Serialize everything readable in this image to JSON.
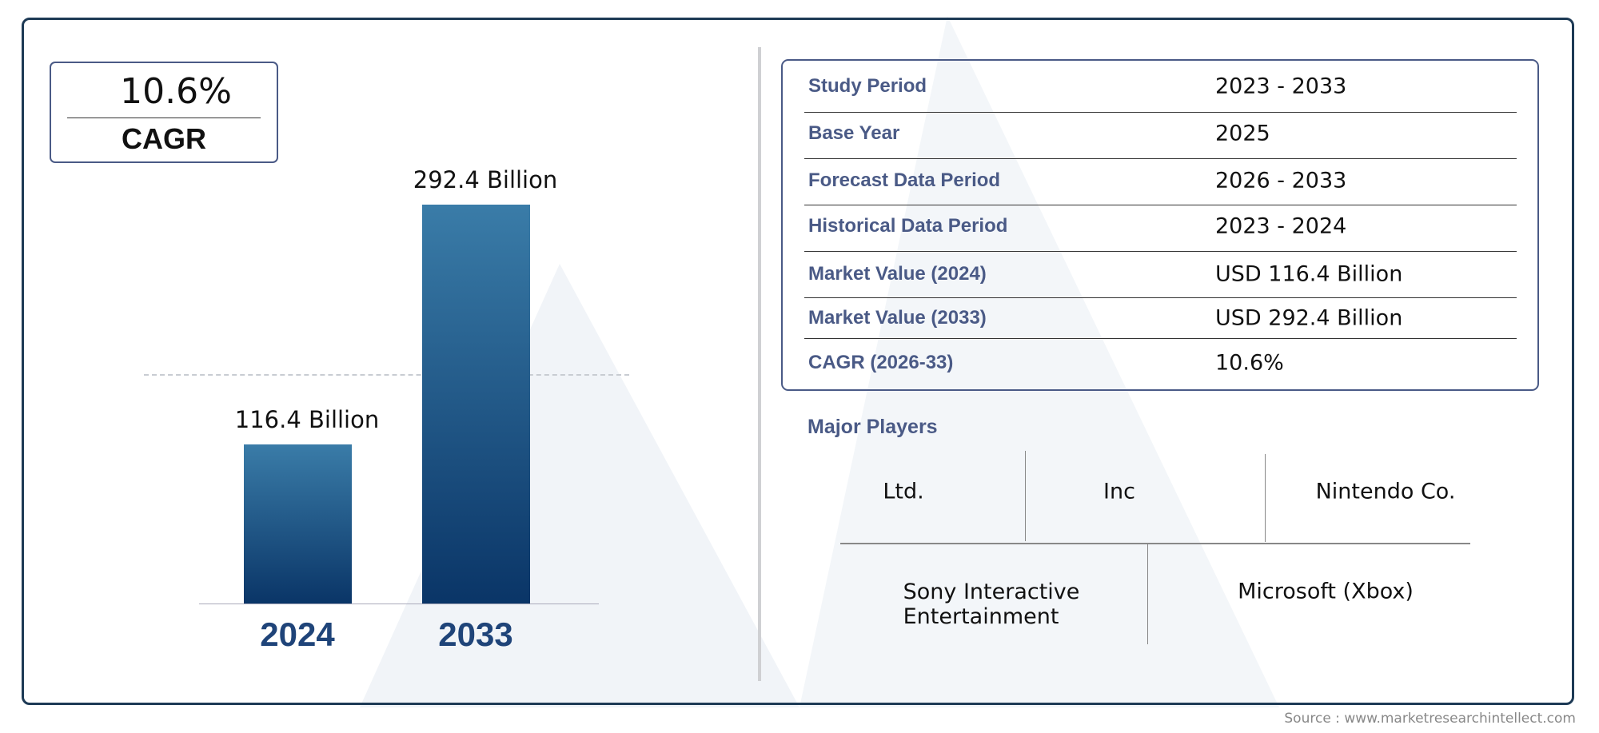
{
  "cagr_badge": {
    "value": "10.6%",
    "label": "CAGR"
  },
  "chart_data": {
    "type": "bar",
    "categories": [
      "2024",
      "2033"
    ],
    "values": [
      116.4,
      292.4
    ],
    "data_labels": [
      "116.4 Billion",
      "292.4 Billion"
    ],
    "unit": "Billion",
    "colors": {
      "bar_top": "#3a7ca8",
      "bar_bottom": "#0a3567",
      "year_label": "#1f4479"
    },
    "reference_line": "dashed at 2024 value"
  },
  "summary_table": [
    {
      "label": "Study Period",
      "value": "2023 - 2033"
    },
    {
      "label": "Base Year",
      "value": "2025"
    },
    {
      "label": "Forecast Data Period",
      "value": "2026 - 2033"
    },
    {
      "label": "Historical Data Period",
      "value": "2023 - 2024"
    },
    {
      "label": "Market Value (2024)",
      "value": "USD 116.4 Billion"
    },
    {
      "label": "Market Value (2033)",
      "value": "USD 292.4 Billion"
    },
    {
      "label": "CAGR (2026-33)",
      "value": "10.6%"
    }
  ],
  "major_players": {
    "title": "Major Players",
    "row1": [
      "Ltd.",
      "Inc",
      "Nintendo Co."
    ],
    "row2": [
      "Sony Interactive\nEntertainment",
      "Microsoft (Xbox)"
    ]
  },
  "source": "Source : www.marketresearchintellect.com"
}
